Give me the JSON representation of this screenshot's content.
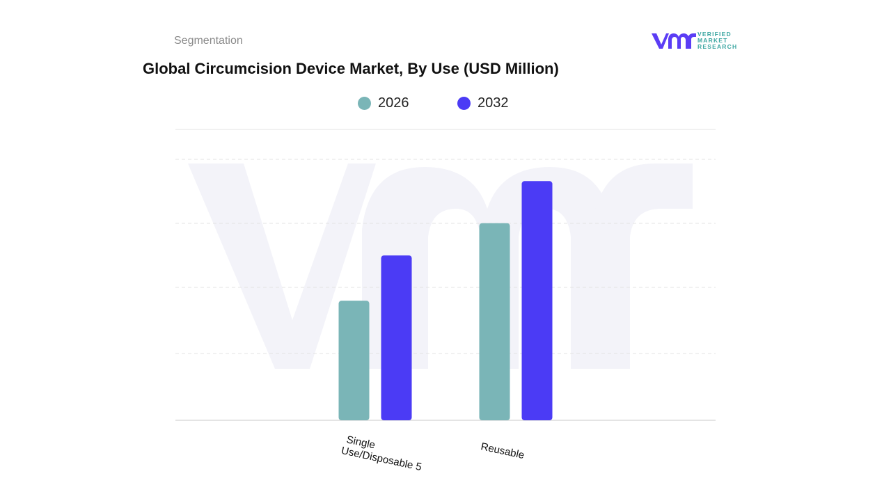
{
  "header": {
    "segment_label": "Segmentation",
    "title": "Global Circumcision Device Market, By Use (USD Million)"
  },
  "logo": {
    "line1": "VERIFIED",
    "line2": "MARKET",
    "line3": "RESEARCH",
    "mark_color": "#5b3df5",
    "text_color": "#3ba6a1"
  },
  "colors": {
    "series_2026": "#7ab5b7",
    "series_2032": "#4b3bf5",
    "grid": "#e3e3e3",
    "watermark": "#f2f2f8"
  },
  "chart_data": {
    "type": "bar",
    "title": "Global Circumcision Device Market, By Use (USD Million)",
    "categories": [
      "Single Use/Disposable 5",
      "Reusable"
    ],
    "category_lines": [
      [
        "Single",
        "Use/Disposable 5"
      ],
      [
        "Reusable"
      ]
    ],
    "series": [
      {
        "name": "2026",
        "values": [
          37,
          61
        ]
      },
      {
        "name": "2032",
        "values": [
          51,
          74
        ]
      }
    ],
    "ylim": [
      0,
      90
    ],
    "grid": true,
    "legend": "top-center",
    "xlabel": "",
    "ylabel": ""
  }
}
